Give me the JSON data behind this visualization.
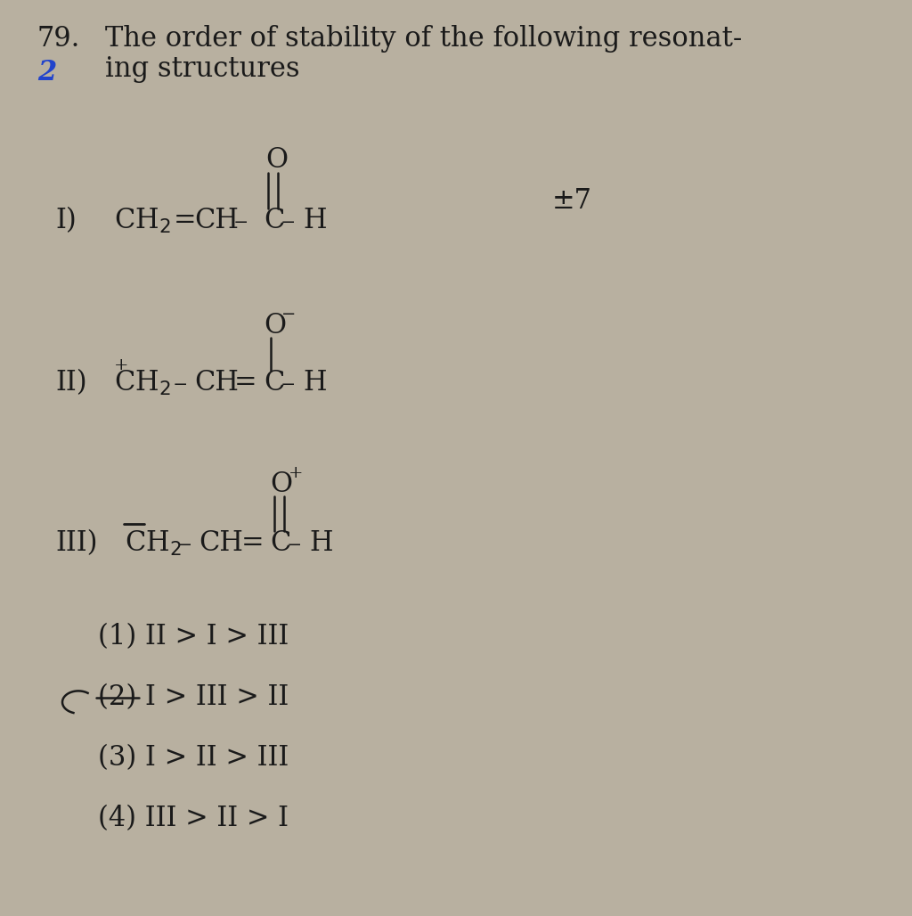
{
  "background_color": "#b8b0a0",
  "text_color": "#1a1a1a",
  "title_number": "79.",
  "blue_number": "2",
  "blue_color": "#2244cc",
  "title_line1": "The order of stability of the following resonat-",
  "title_line2": "ing structures",
  "struct_I_label": "I)",
  "struct_II_label": "II)",
  "struct_III_label": "III)",
  "annotation": "±7",
  "options": [
    "(1) II > I > III",
    "(2) I > III > II",
    "(3) I > II > III",
    "(4) III > II > I"
  ],
  "main_fontsize": 22,
  "small_fontsize": 14,
  "title_fontsize": 22
}
